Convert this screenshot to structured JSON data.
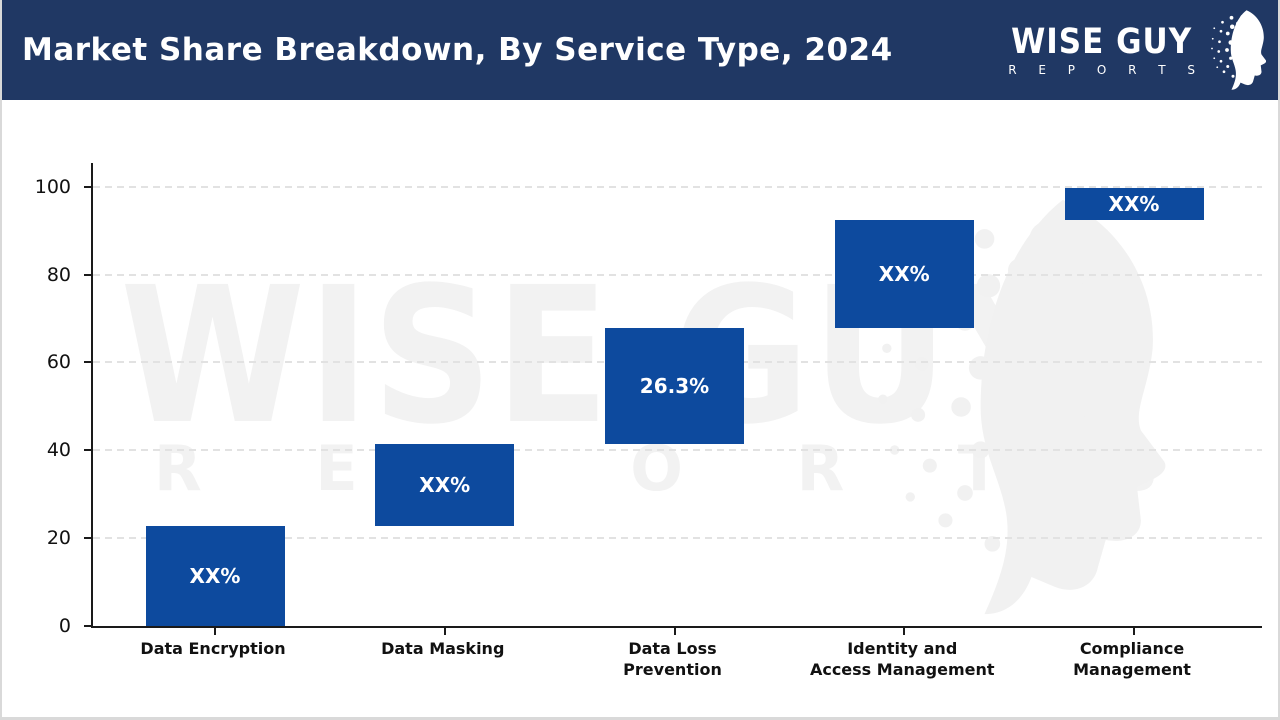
{
  "header": {
    "title": "Market Share Breakdown, By Service Type, 2024",
    "logo": {
      "name": "WISE GUY",
      "tagline": "R E P O R T S"
    }
  },
  "watermark": {
    "name": "WISE GUY",
    "tagline": "R E P O R T S"
  },
  "chart_data": {
    "type": "bar",
    "subtype": "waterfall",
    "title": "Market Share Breakdown, By Service Type, 2024",
    "categories": [
      "Data Encryption",
      "Data Masking",
      "Data Loss Prevention",
      "Identity and Access Management",
      "Compliance Management"
    ],
    "category_lines": [
      [
        "Data Encryption"
      ],
      [
        "Data Masking"
      ],
      [
        "Data Loss",
        "Prevention"
      ],
      [
        "Identity and",
        "Access Management"
      ],
      [
        "Compliance",
        "Management"
      ]
    ],
    "segments": [
      {
        "category": "Data Encryption",
        "start": 0,
        "end": 22.7,
        "label": "XX%"
      },
      {
        "category": "Data Masking",
        "start": 22.7,
        "end": 41.5,
        "label": "XX%"
      },
      {
        "category": "Data Loss Prevention",
        "start": 41.5,
        "end": 67.8,
        "label": "26.3%"
      },
      {
        "category": "Identity and Access Management",
        "start": 67.8,
        "end": 92.4,
        "label": "XX%"
      },
      {
        "category": "Compliance Management",
        "start": 92.4,
        "end": 99.7,
        "label": "XX%"
      }
    ],
    "ylabel": "",
    "xlabel": "",
    "yticks": [
      0,
      20,
      40,
      60,
      80,
      100
    ],
    "ylim": [
      0,
      105.4
    ],
    "grid": "horizontal-dashed",
    "legend": "none",
    "colors": {
      "bar": "#0d4a9e",
      "bar_label": "#ffffff",
      "axis": "#1a1a1a",
      "gridline": "#e2e2e2",
      "header_bg": "#203864",
      "header_text": "#ffffff",
      "watermark": "#f2f2f2"
    }
  }
}
